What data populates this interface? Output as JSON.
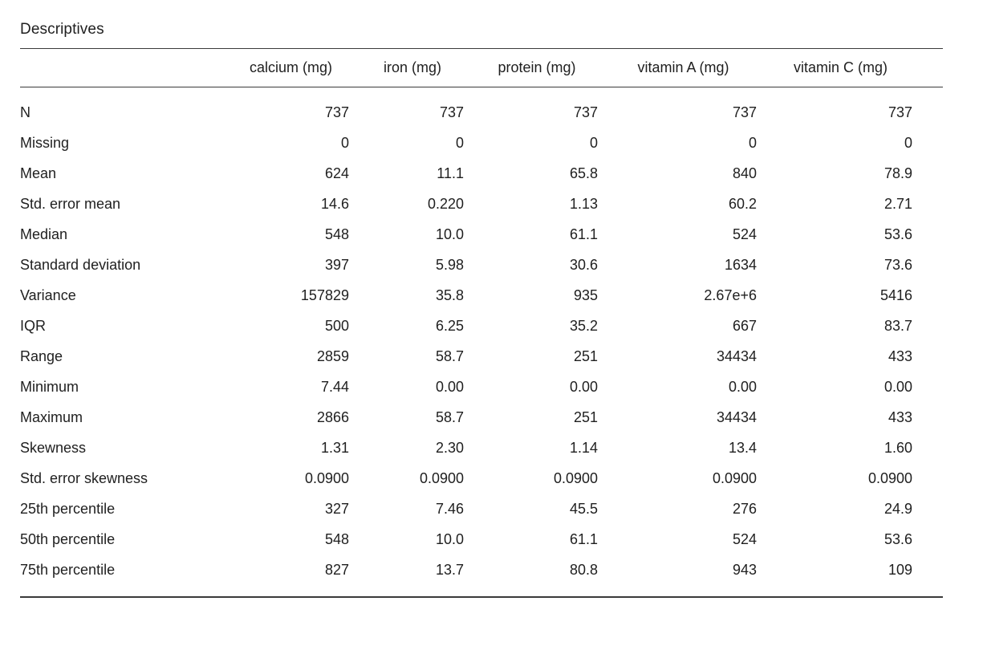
{
  "colors": {
    "text": "#1f1f1f",
    "rule": "#3a3a3a"
  },
  "chart_data": {
    "type": "table",
    "title": "Descriptives",
    "columns": [
      "calcium (mg)",
      "iron (mg)",
      "protein (mg)",
      "vitamin A (mg)",
      "vitamin C (mg)"
    ],
    "rows": [
      {
        "label": "N",
        "values": [
          "737",
          "737",
          "737",
          "737",
          "737"
        ]
      },
      {
        "label": "Missing",
        "values": [
          "0",
          "0",
          "0",
          "0",
          "0"
        ]
      },
      {
        "label": "Mean",
        "values": [
          "624",
          "11.1",
          "65.8",
          "840",
          "78.9"
        ]
      },
      {
        "label": "Std. error mean",
        "values": [
          "14.6",
          "0.220",
          "1.13",
          "60.2",
          "2.71"
        ]
      },
      {
        "label": "Median",
        "values": [
          "548",
          "10.0",
          "61.1",
          "524",
          "53.6"
        ]
      },
      {
        "label": "Standard deviation",
        "values": [
          "397",
          "5.98",
          "30.6",
          "1634",
          "73.6"
        ]
      },
      {
        "label": "Variance",
        "values": [
          "157829",
          "35.8",
          "935",
          "2.67e+6",
          "5416"
        ]
      },
      {
        "label": "IQR",
        "values": [
          "500",
          "6.25",
          "35.2",
          "667",
          "83.7"
        ]
      },
      {
        "label": "Range",
        "values": [
          "2859",
          "58.7",
          "251",
          "34434",
          "433"
        ]
      },
      {
        "label": "Minimum",
        "values": [
          "7.44",
          "0.00",
          "0.00",
          "0.00",
          "0.00"
        ]
      },
      {
        "label": "Maximum",
        "values": [
          "2866",
          "58.7",
          "251",
          "34434",
          "433"
        ]
      },
      {
        "label": "Skewness",
        "values": [
          "1.31",
          "2.30",
          "1.14",
          "13.4",
          "1.60"
        ]
      },
      {
        "label": "Std. error skewness",
        "values": [
          "0.0900",
          "0.0900",
          "0.0900",
          "0.0900",
          "0.0900"
        ]
      },
      {
        "label": "25th percentile",
        "values": [
          "327",
          "7.46",
          "45.5",
          "276",
          "24.9"
        ]
      },
      {
        "label": "50th percentile",
        "values": [
          "548",
          "10.0",
          "61.1",
          "524",
          "53.6"
        ]
      },
      {
        "label": "75th percentile",
        "values": [
          "827",
          "13.7",
          "80.8",
          "943",
          "109"
        ]
      }
    ]
  }
}
